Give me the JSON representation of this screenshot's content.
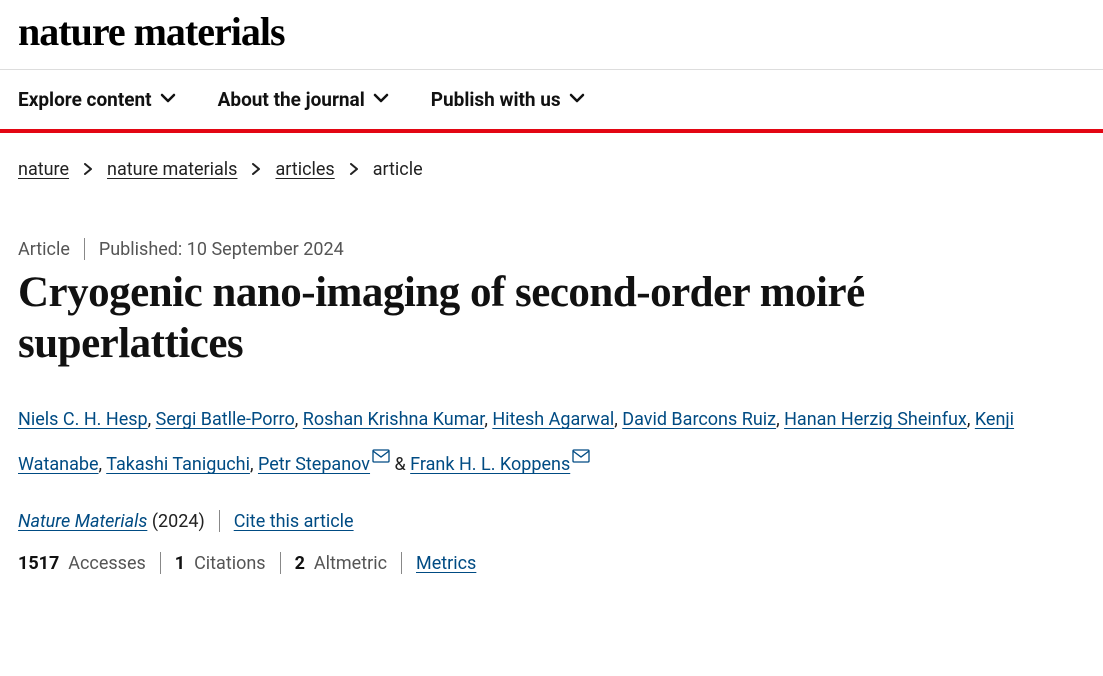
{
  "logo": "nature materials",
  "nav": [
    {
      "label": "Explore content"
    },
    {
      "label": "About the journal"
    },
    {
      "label": "Publish with us"
    }
  ],
  "breadcrumb": {
    "items": [
      {
        "label": "nature",
        "link": true
      },
      {
        "label": "nature materials",
        "link": true
      },
      {
        "label": "articles",
        "link": true
      }
    ],
    "current": "article"
  },
  "meta": {
    "type": "Article",
    "published_label": "Published:",
    "published_date": "10 September 2024"
  },
  "title": "Cryogenic nano-imaging of second-order moiré superlattices",
  "authors": [
    {
      "name": "Niels C. H. Hesp",
      "mail": false
    },
    {
      "name": "Sergi Batlle-Porro",
      "mail": false
    },
    {
      "name": "Roshan Krishna Kumar",
      "mail": false
    },
    {
      "name": "Hitesh Agarwal",
      "mail": false
    },
    {
      "name": "David Barcons Ruiz",
      "mail": false
    },
    {
      "name": "Hanan Herzig Sheinfux",
      "mail": false
    },
    {
      "name": "Kenji Watanabe",
      "mail": false
    },
    {
      "name": "Takashi Taniguchi",
      "mail": false
    },
    {
      "name": "Petr Stepanov",
      "mail": true
    },
    {
      "name": "Frank H. L. Koppens",
      "mail": true
    }
  ],
  "journal": {
    "name": "Nature Materials",
    "year": "(2024)",
    "cite": "Cite this article"
  },
  "metrics": {
    "accesses_n": "1517",
    "accesses_l": "Accesses",
    "citations_n": "1",
    "citations_l": "Citations",
    "altmetric_n": "2",
    "altmetric_l": "Altmetric",
    "link": "Metrics"
  },
  "colors": {
    "brand_red": "#e30613",
    "link_blue": "#004b83"
  }
}
